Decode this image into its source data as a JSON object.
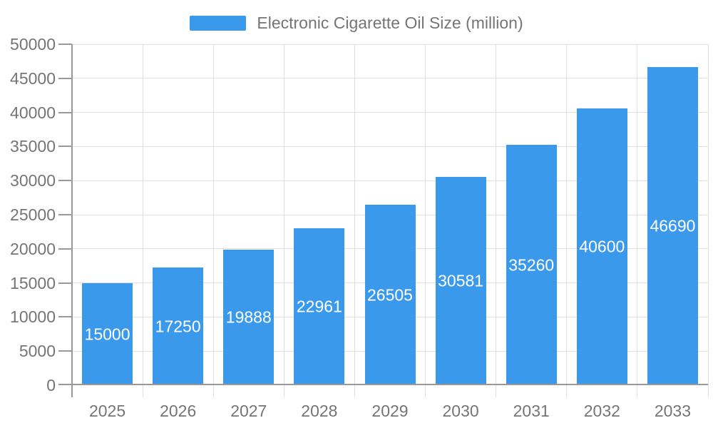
{
  "colors": {
    "background": "#FFFFFF",
    "bar_fill": "#3B99EC",
    "grid_line": "#E0E0E0",
    "axis_line": "#999999",
    "axis_text": "#757575",
    "bar_label_text": "#FFFFFF"
  },
  "legend": {
    "position": "top",
    "items": [
      {
        "label": "Electronic Cigarette Oil Size (million)",
        "swatch_color": "#3B99EC"
      }
    ]
  },
  "chart_data": {
    "type": "bar",
    "title": "Electronic Cigarette Oil Size (million)",
    "categories": [
      "2025",
      "2026",
      "2027",
      "2028",
      "2029",
      "2030",
      "2031",
      "2032",
      "2033"
    ],
    "values": [
      15000,
      17250,
      19888,
      22961,
      26505,
      30581,
      35260,
      40600,
      46690
    ],
    "xlabel": "",
    "ylabel": "",
    "ylim": [
      0,
      50000
    ],
    "yticks": [
      0,
      5000,
      10000,
      15000,
      20000,
      25000,
      30000,
      35000,
      40000,
      45000,
      50000
    ],
    "grid": true,
    "legend_position": "top",
    "bar_value_labels": true
  }
}
